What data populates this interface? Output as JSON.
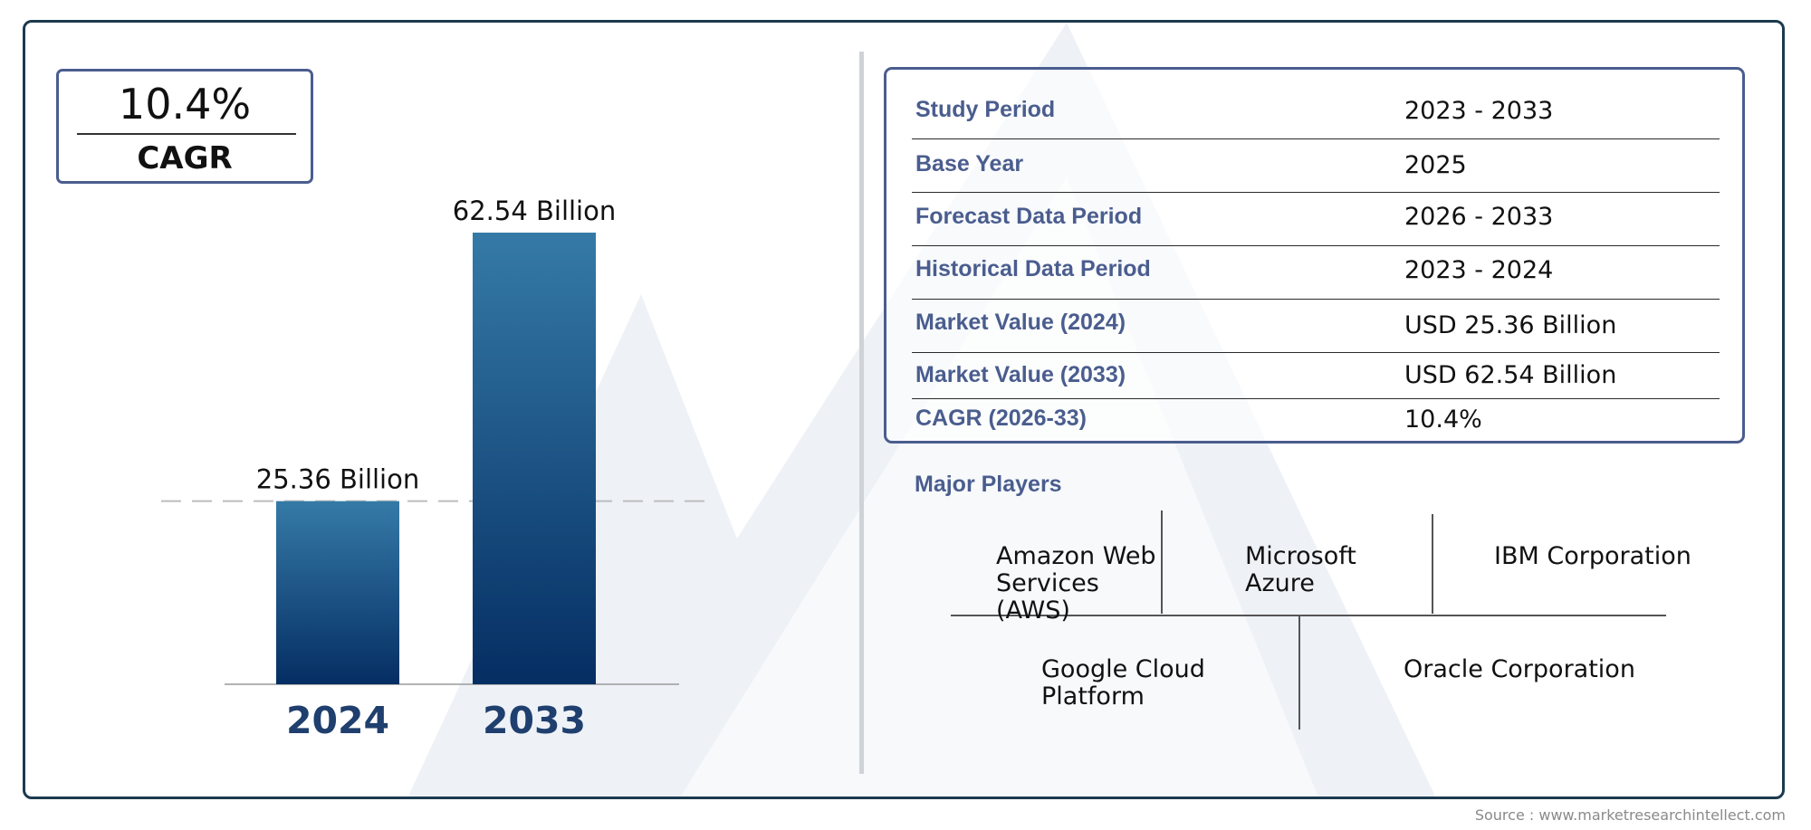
{
  "cagr": {
    "value": "10.4%",
    "label": "CAGR"
  },
  "chart_data": {
    "type": "bar",
    "categories": [
      "2024",
      "2033"
    ],
    "values": [
      25.36,
      62.54
    ],
    "data_labels": [
      "25.36 Billion",
      "62.54 Billion"
    ],
    "ylim": [
      0,
      62.54
    ],
    "reference_line_value": 25.36,
    "grid": false,
    "title": "",
    "xlabel": "",
    "ylabel": "",
    "bar_color_top": "#357aa7",
    "bar_color_bottom": "#052e63",
    "category_color": "#1f3f6e"
  },
  "info_table": [
    {
      "label": "Study Period",
      "value": "2023 - 2033"
    },
    {
      "label": "Base Year",
      "value": "2025"
    },
    {
      "label": "Forecast Data Period",
      "value": "2026 - 2033"
    },
    {
      "label": "Historical Data Period",
      "value": "2023 - 2024"
    },
    {
      "label": "Market Value (2024)",
      "value": "USD 25.36 Billion"
    },
    {
      "label": "Market Value (2033)",
      "value": "USD 62.54 Billion"
    },
    {
      "label": "CAGR (2026-33)",
      "value": "10.4%"
    }
  ],
  "players": {
    "title": "Major Players",
    "row1": [
      "Amazon Web Services (AWS)",
      "Microsoft Azure",
      "IBM Corporation"
    ],
    "row2": [
      "Google Cloud Platform",
      "Oracle Corporation"
    ]
  },
  "source": "Source : www.marketresearchintellect.com",
  "colors": {
    "accent": "#4a5d8e",
    "frame": "#1b3a4f",
    "watermark": "#e9eef4"
  }
}
